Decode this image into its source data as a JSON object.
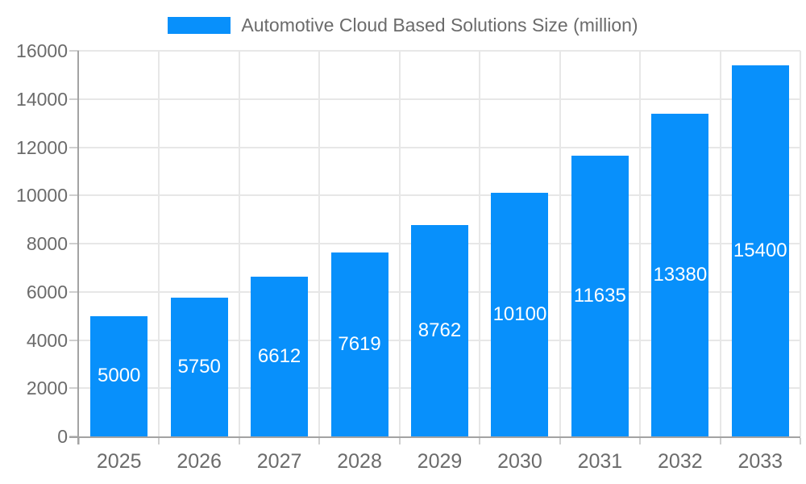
{
  "chart_data": {
    "type": "bar",
    "title": "Automotive Cloud Based Solutions Size (million)",
    "categories": [
      "2025",
      "2026",
      "2027",
      "2028",
      "2029",
      "2030",
      "2031",
      "2032",
      "2033"
    ],
    "values": [
      5000,
      5750,
      6612,
      7619,
      8762,
      10100,
      11635,
      13380,
      15400
    ],
    "series": [
      {
        "name": "Automotive Cloud Based Solutions Size (million)",
        "values": [
          5000,
          5750,
          6612,
          7619,
          8762,
          10100,
          11635,
          13380,
          15400
        ]
      }
    ],
    "xlabel": "",
    "ylabel": "",
    "ylim": [
      0,
      16000
    ],
    "ytick_step": 2000,
    "yticks": [
      0,
      2000,
      4000,
      6000,
      8000,
      10000,
      12000,
      14000,
      16000
    ],
    "grid": true,
    "legend_position": "top-center",
    "value_labels": "inside-center",
    "colors": {
      "bar": "#0890fb",
      "value_label": "#ffffff",
      "axis_text": "#6b6b6b",
      "grid_line": "#e7e7e7",
      "axis_line": "#a3a3a3",
      "tick_mark": "#cfcfcf",
      "background": "#ffffff"
    }
  }
}
